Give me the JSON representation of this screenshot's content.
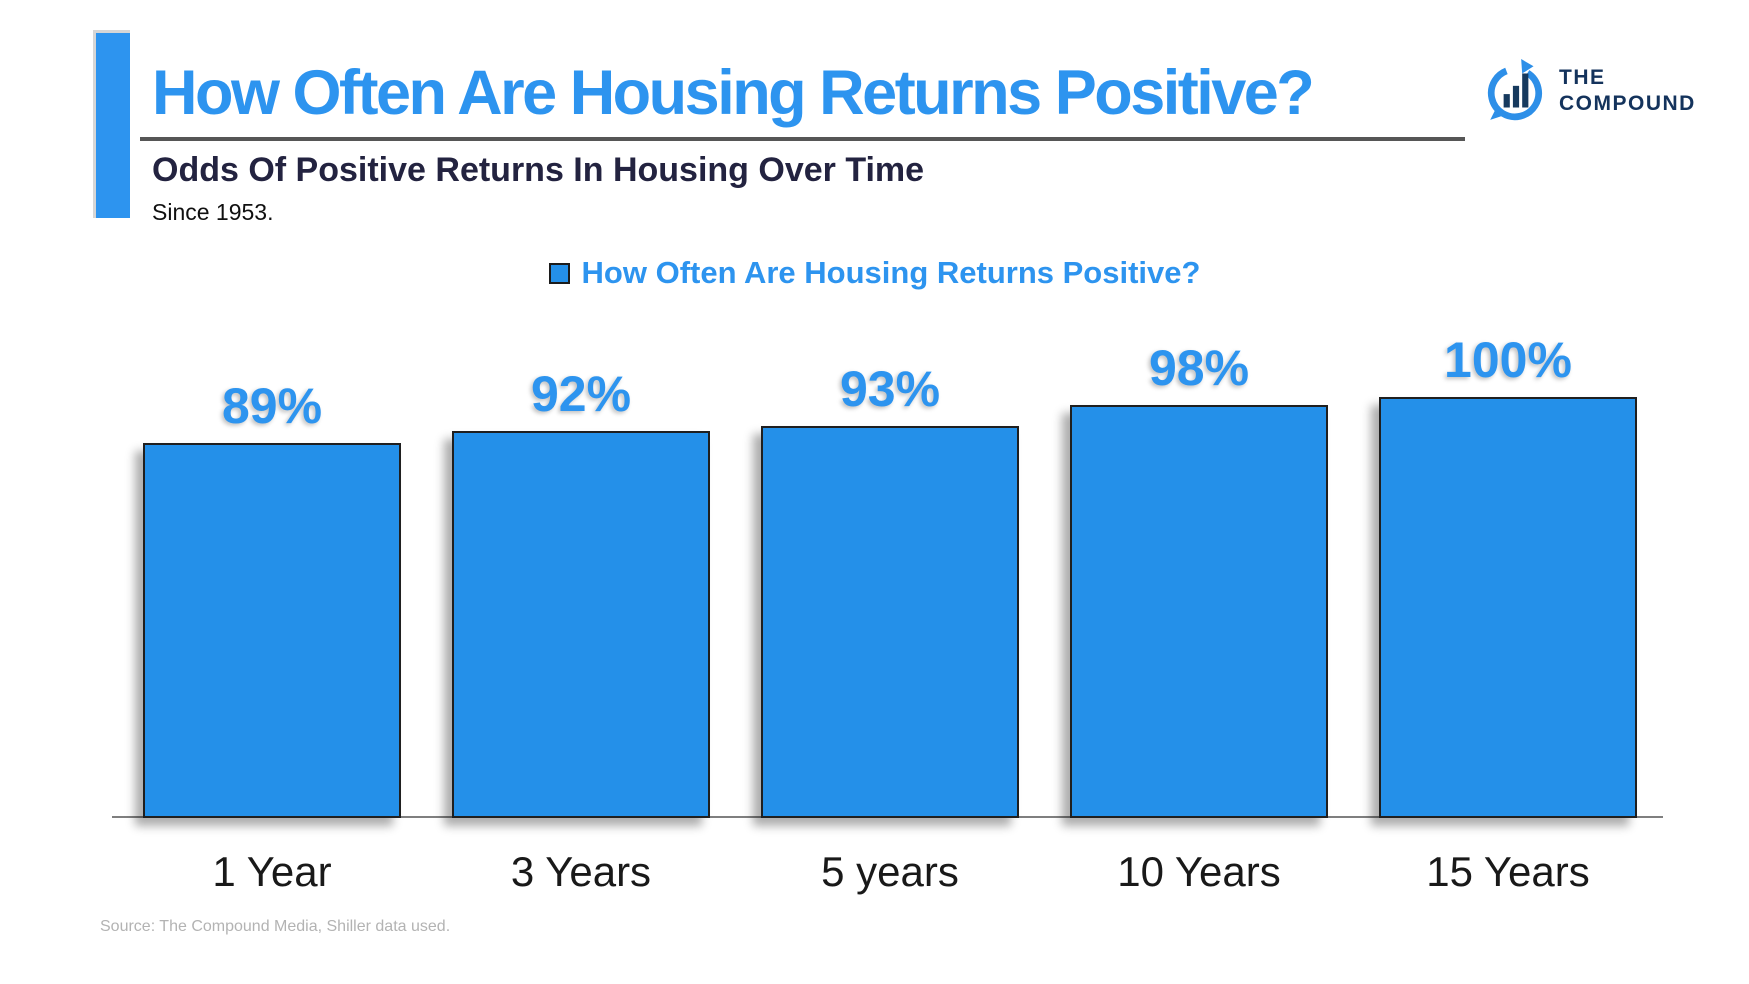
{
  "header": {
    "title": "How Often Are Housing Returns Positive?",
    "subtitle": "Odds Of Positive Returns In Housing Over Time",
    "subnote": "Since 1953.",
    "logo": {
      "line1": "THE",
      "line2": "COMPOUND"
    }
  },
  "legend": {
    "label": "How Often Are Housing Returns Positive?"
  },
  "chart_data": {
    "type": "bar",
    "title": "How Often Are Housing Returns Positive?",
    "categories": [
      "1 Year",
      "3 Years",
      "5 years",
      "10 Years",
      "15 Years"
    ],
    "values": [
      89,
      92,
      93,
      98,
      100
    ],
    "value_labels": [
      "89%",
      "92%",
      "93%",
      "98%",
      "100%"
    ],
    "xlabel": "",
    "ylabel": "",
    "ylim": [
      0,
      100
    ],
    "grid": false,
    "legend_position": "top-center",
    "bar_color": "#2490E9",
    "bar_border_color": "#1f1f1f",
    "value_label_color": "#2D94EF"
  },
  "footer": {
    "source": "Source: The Compound Media, Shiller data used."
  },
  "colors": {
    "accent_blue": "#2D94EF",
    "bar_fill": "#2490E9",
    "subtitle_navy": "#232340",
    "logo_navy": "#14335C",
    "underline_gray": "#565656",
    "axis_gray": "#7f7f7f",
    "source_gray": "#b3b3b3"
  }
}
